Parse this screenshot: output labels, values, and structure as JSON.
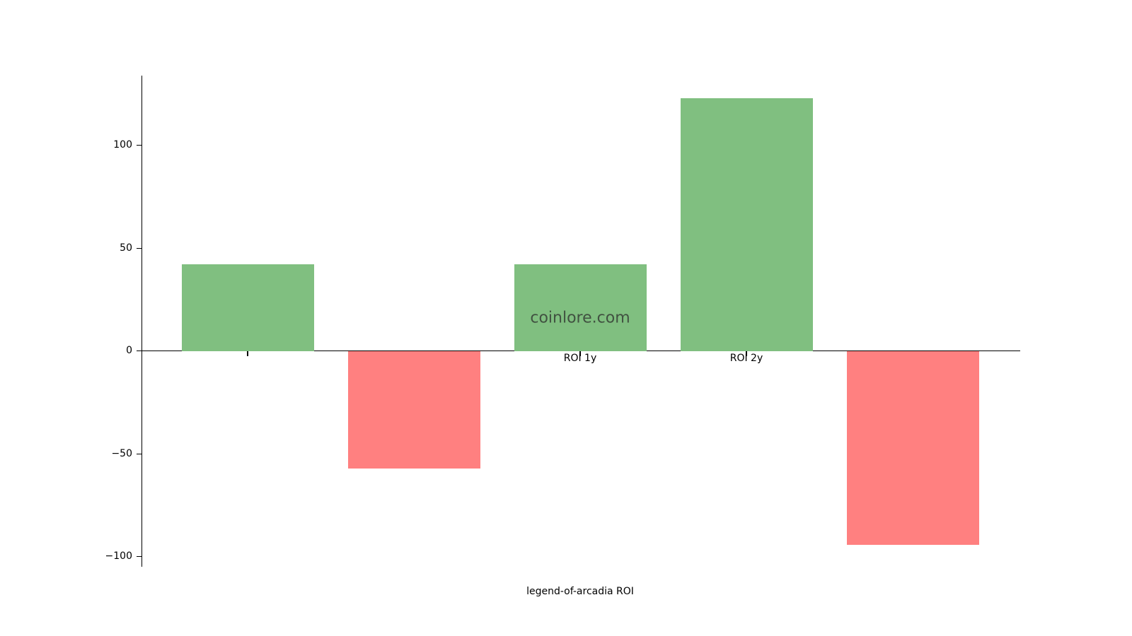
{
  "page": {
    "background_hex": "#ffffff"
  },
  "watermark": {
    "text": "coinlore.com"
  },
  "chart_data": {
    "type": "bar",
    "categories": [
      "",
      "",
      "ROI 1y",
      "ROI 2y",
      ""
    ],
    "values": [
      42,
      -57,
      42,
      123,
      -94
    ],
    "bar_colors": [
      "#80bf80",
      "#ff8080",
      "#80bf80",
      "#80bf80",
      "#ff8080"
    ],
    "positive_color": "#80bf80",
    "negative_color": "#ff8080",
    "title": "",
    "xlabel": "legend-of-arcadia ROI",
    "ylabel": "",
    "yticks": [
      100,
      50,
      0,
      -50,
      -100
    ],
    "ylim": [
      -104.8,
      134.3
    ],
    "x_ticks_visible_at_indices": [
      0,
      2,
      3
    ],
    "grid": false,
    "legend_position": "none",
    "watermark": "coinlore.com",
    "axis_color_hex": "#000000",
    "tick_label_color_hex": "#000000"
  }
}
